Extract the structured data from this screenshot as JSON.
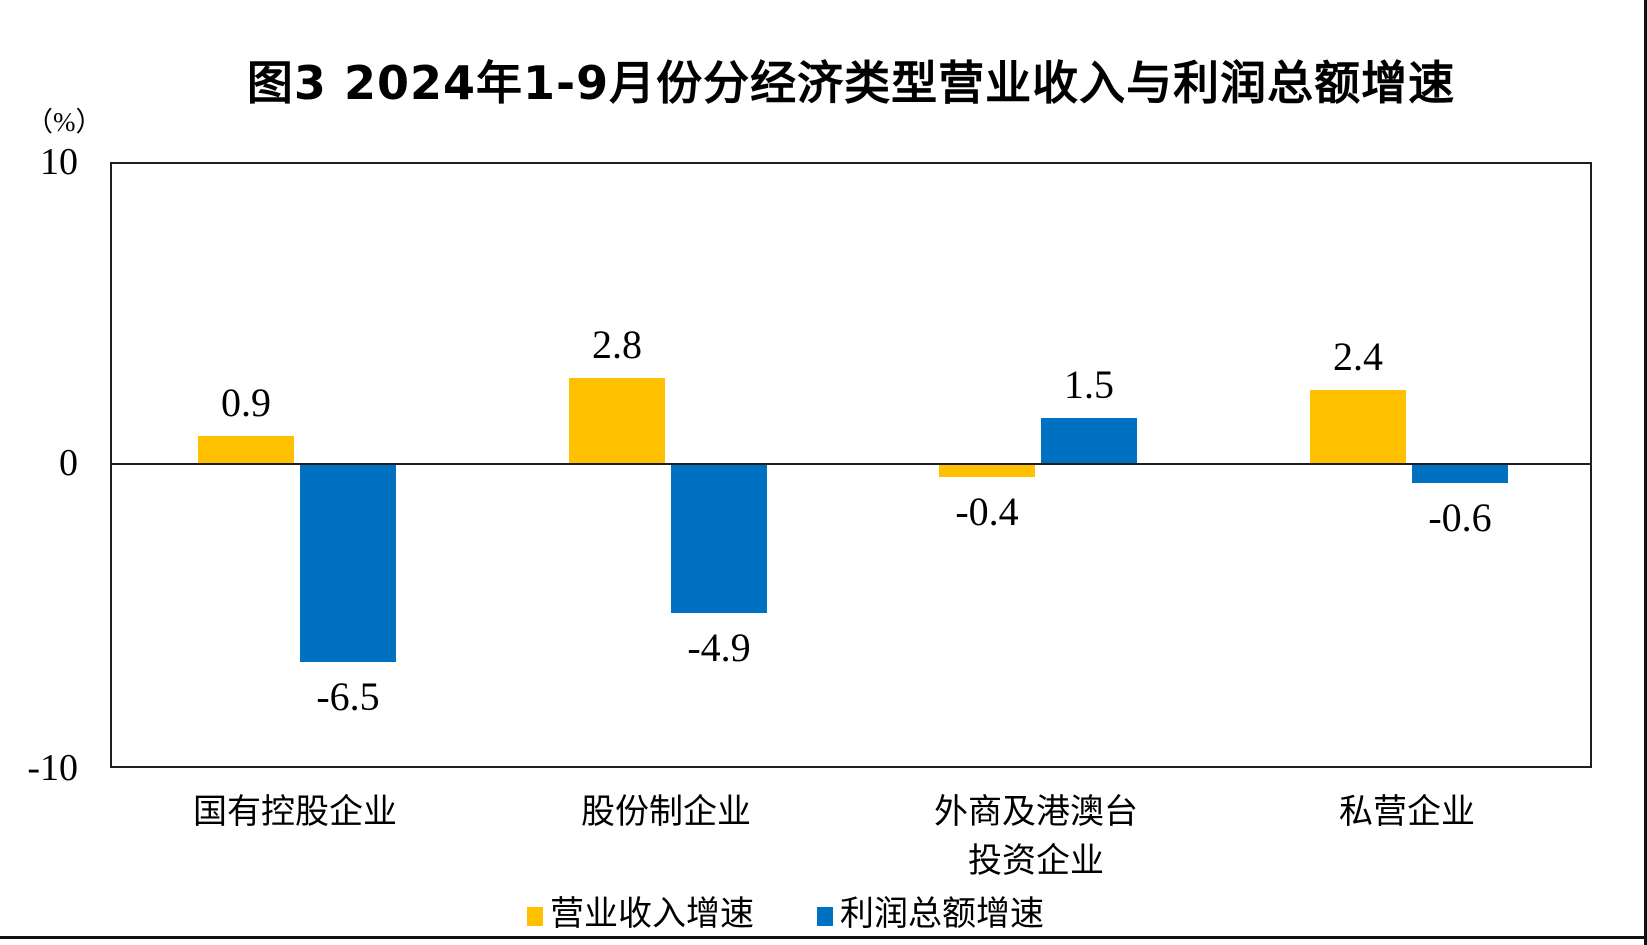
{
  "title": "图3 2024年1-9月份分经济类型营业收入与利润总额增速",
  "unit_label": "（%）",
  "colors": {
    "revenue": "#FFC000",
    "profit": "#0070C0",
    "axis": "#1f1f1f"
  },
  "y_axis": {
    "ticks": [
      "10",
      "0",
      "-10"
    ],
    "max": 10,
    "min": -10
  },
  "legend": [
    {
      "name": "营业收入增速",
      "color_key": "revenue"
    },
    {
      "name": "利润总额增速",
      "color_key": "profit"
    }
  ],
  "chart_data": {
    "type": "bar",
    "title": "图3 2024年1-9月份分经济类型营业收入与利润总额增速",
    "categories": [
      "国有控股企业",
      "股份制企业",
      "外商及港澳台\n投资企业",
      "私营企业"
    ],
    "series": [
      {
        "name": "营业收入增速",
        "color": "#FFC000",
        "values": [
          0.9,
          2.8,
          -0.4,
          2.4
        ]
      },
      {
        "name": "利润总额增速",
        "color": "#0070C0",
        "values": [
          -6.5,
          -4.9,
          1.5,
          -0.6
        ]
      }
    ],
    "xlabel": "",
    "ylabel": "（%）",
    "ylim": [
      -10,
      10
    ],
    "y_ticks": [
      10,
      0,
      -10
    ],
    "grid": false,
    "legend_position": "bottom",
    "data_labels": true
  }
}
